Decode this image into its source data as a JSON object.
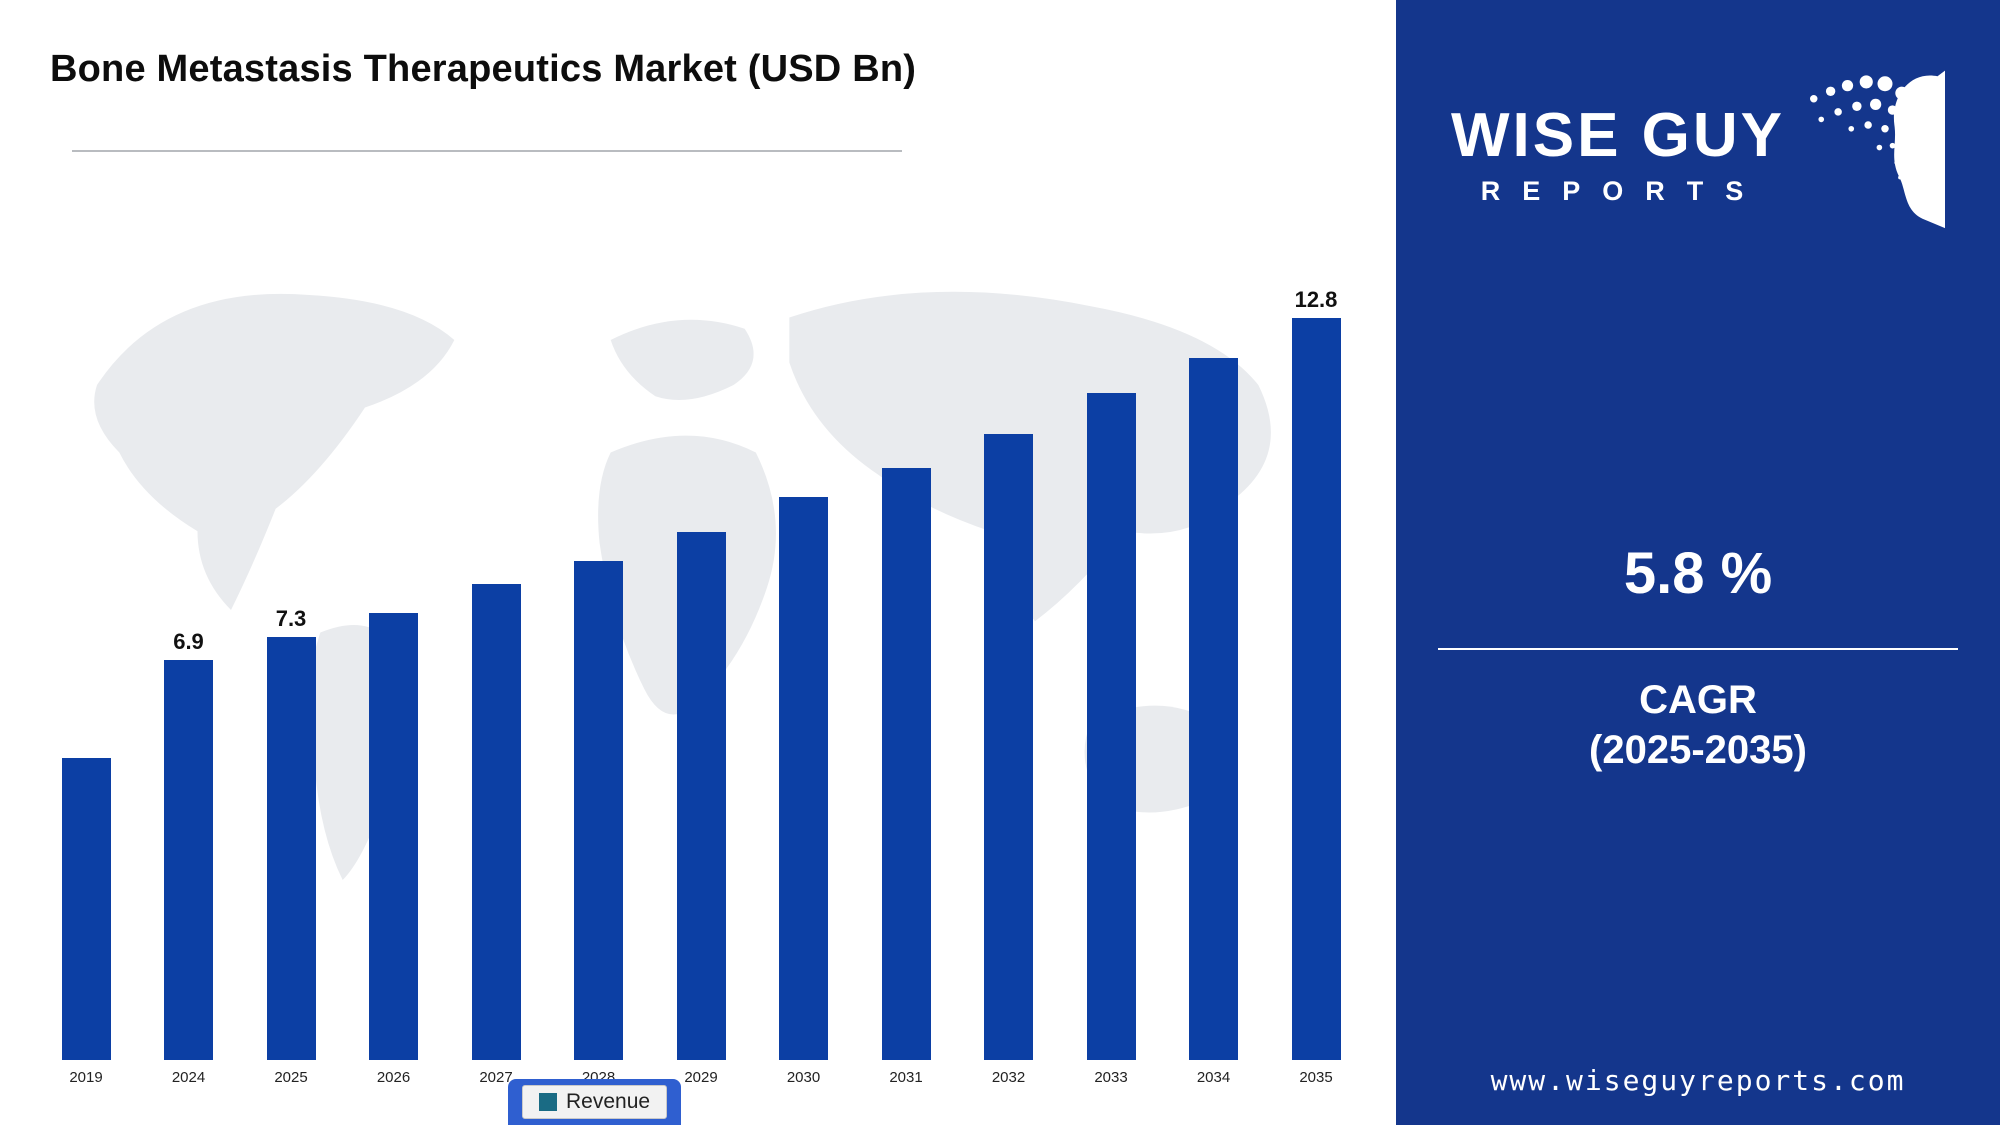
{
  "title": "Bone Metastasis Therapeutics Market (USD Bn)",
  "chart_data": {
    "type": "bar",
    "title": "Bone Metastasis Therapeutics Market (USD Bn)",
    "categories": [
      "2019",
      "2024",
      "2025",
      "2026",
      "2027",
      "2028",
      "2029",
      "2030",
      "2031",
      "2032",
      "2033",
      "2034",
      "2035"
    ],
    "values": [
      5.2,
      6.9,
      7.3,
      7.7,
      8.2,
      8.6,
      9.1,
      9.7,
      10.2,
      10.8,
      11.5,
      12.1,
      12.8
    ],
    "labeled_values": {
      "2024": "6.9",
      "2025": "7.3",
      "2035": "12.8"
    },
    "bar_color": "#0c3fa4",
    "ylim": [
      0,
      13.5
    ],
    "grid": false,
    "legend_position": "bottom-center",
    "legend": [
      {
        "label": "Revenue",
        "color": "#1a6b84"
      }
    ]
  },
  "right_panel": {
    "background": "#14368c",
    "logo": {
      "line1": "WISE GUY",
      "line2": "REPORTS"
    },
    "cagr_value": "5.8 %",
    "cagr_label_line1": "CAGR",
    "cagr_label_line2": "(2025-2035)",
    "website": "www.wiseguyreports.com"
  }
}
